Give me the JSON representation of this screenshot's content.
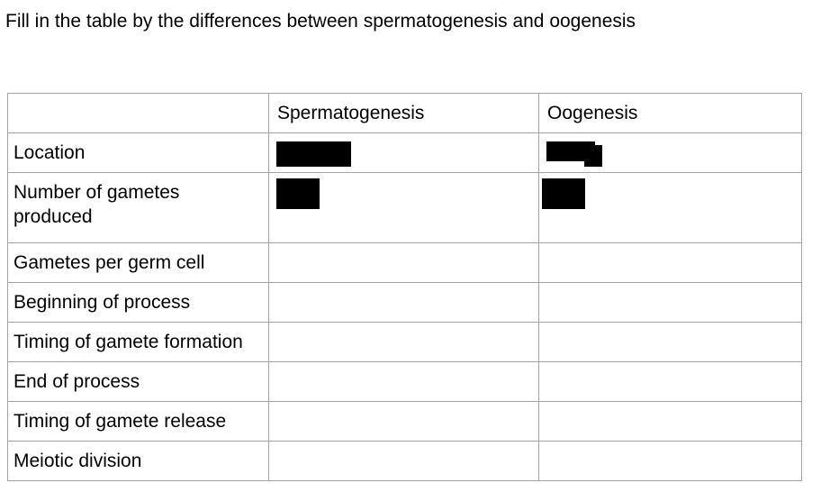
{
  "page": {
    "title": "Fill in the table by the differences between spermatogenesis and oogenesis"
  },
  "table": {
    "headers": [
      "",
      "Spermatogenesis",
      "Oogenesis"
    ],
    "rows": [
      {
        "label": "Location",
        "spermatogenesis_redacted": true,
        "oogenesis_redacted": true
      },
      {
        "label": "Number of gametes produced",
        "spermatogenesis_redacted": true,
        "oogenesis_redacted": true
      },
      {
        "label": "Gametes per germ cell",
        "spermatogenesis_redacted": false,
        "oogenesis_redacted": false
      },
      {
        "label": "Beginning of process",
        "spermatogenesis_redacted": false,
        "oogenesis_redacted": false
      },
      {
        "label": "Timing of gamete formation",
        "spermatogenesis_redacted": false,
        "oogenesis_redacted": false
      },
      {
        "label": "End of process",
        "spermatogenesis_redacted": false,
        "oogenesis_redacted": false
      },
      {
        "label": "Timing of gamete release",
        "spermatogenesis_redacted": false,
        "oogenesis_redacted": false
      },
      {
        "label": "Meiotic division",
        "spermatogenesis_redacted": false,
        "oogenesis_redacted": false
      }
    ]
  }
}
